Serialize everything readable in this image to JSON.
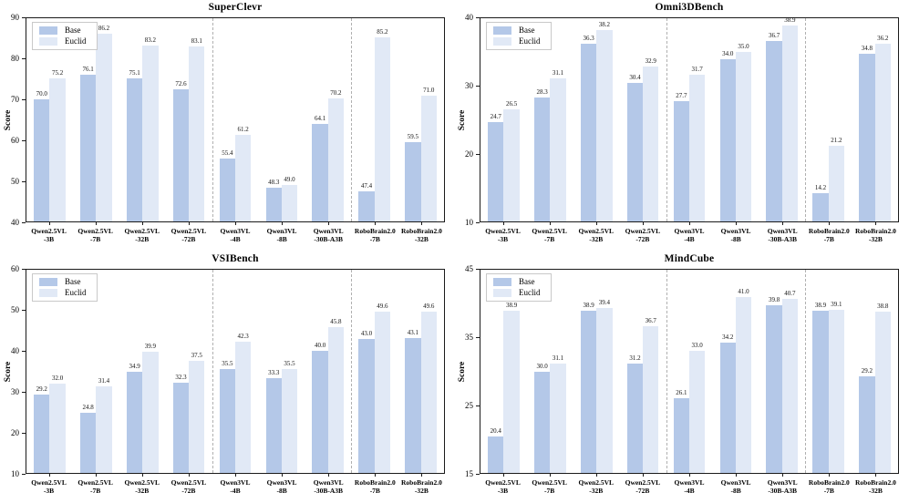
{
  "figure": {
    "legend_labels": [
      "Base",
      "Euclid"
    ],
    "score_axis_label": "Score"
  },
  "colors": {
    "base_bar": "#b4c8e8",
    "euclid_bar": "#e1e9f6",
    "separator": "#b0b0b0",
    "axis": "#1a1a1a",
    "value_label": "#111111",
    "background": "#ffffff"
  },
  "chart_data": [
    {
      "type": "bar",
      "title": "SuperClevr",
      "xlabel": "",
      "ylabel": "Score",
      "ylim": [
        40,
        90
      ],
      "yticks": [
        40,
        50,
        60,
        70,
        80,
        90
      ],
      "grid": false,
      "legend_position": "upper-left",
      "categories": [
        [
          "Qwen2.5VL",
          "-3B"
        ],
        [
          "Qwen2.5VL",
          "-7B"
        ],
        [
          "Qwen2.5VL",
          "-32B"
        ],
        [
          "Qwen2.5VL",
          "-72B"
        ],
        [
          "Qwen3VL",
          "-4B"
        ],
        [
          "Qwen3VL",
          "-8B"
        ],
        [
          "Qwen3VL",
          "-30B-A3B"
        ],
        [
          "RoboBrain2.0",
          "-7B"
        ],
        [
          "RoboBrain2.0",
          "-32B"
        ]
      ],
      "series": [
        {
          "name": "Base",
          "values": [
            70.0,
            76.1,
            75.1,
            72.6,
            55.4,
            48.3,
            64.1,
            47.4,
            59.5
          ]
        },
        {
          "name": "Euclid",
          "values": [
            75.2,
            86.2,
            83.2,
            83.1,
            61.2,
            49.0,
            70.2,
            85.2,
            71.0
          ]
        }
      ],
      "separators_after_index": [
        3,
        6
      ]
    },
    {
      "type": "bar",
      "title": "Omni3DBench",
      "xlabel": "",
      "ylabel": "Score",
      "ylim": [
        10,
        40
      ],
      "yticks": [
        10,
        20,
        30,
        40
      ],
      "grid": false,
      "legend_position": "upper-left",
      "categories": [
        [
          "Qwen2.5VL",
          "-3B"
        ],
        [
          "Qwen2.5VL",
          "-7B"
        ],
        [
          "Qwen2.5VL",
          "-32B"
        ],
        [
          "Qwen2.5VL",
          "-72B"
        ],
        [
          "Qwen3VL",
          "-4B"
        ],
        [
          "Qwen3VL",
          "-8B"
        ],
        [
          "Qwen3VL",
          "-30B-A3B"
        ],
        [
          "RoboBrain2.0",
          "-7B"
        ],
        [
          "RoboBrain2.0",
          "-32B"
        ]
      ],
      "series": [
        {
          "name": "Base",
          "values": [
            24.7,
            28.3,
            36.3,
            30.4,
            27.7,
            34.0,
            36.7,
            14.2,
            34.8
          ]
        },
        {
          "name": "Euclid",
          "values": [
            26.5,
            31.1,
            38.2,
            32.9,
            31.7,
            35.0,
            38.9,
            21.2,
            36.2
          ]
        }
      ],
      "separators_after_index": [
        3,
        6
      ]
    },
    {
      "type": "bar",
      "title": "VSIBench",
      "xlabel": "",
      "ylabel": "Score",
      "ylim": [
        10,
        60
      ],
      "yticks": [
        10,
        20,
        30,
        40,
        50,
        60
      ],
      "grid": false,
      "legend_position": "upper-left",
      "categories": [
        [
          "Qwen2.5VL",
          "-3B"
        ],
        [
          "Qwen2.5VL",
          "-7B"
        ],
        [
          "Qwen2.5VL",
          "-32B"
        ],
        [
          "Qwen2.5VL",
          "-72B"
        ],
        [
          "Qwen3VL",
          "-4B"
        ],
        [
          "Qwen3VL",
          "-8B"
        ],
        [
          "Qwen3VL",
          "-30B-A3B"
        ],
        [
          "RoboBrain2.0",
          "-7B"
        ],
        [
          "RoboBrain2.0",
          "-32B"
        ]
      ],
      "series": [
        {
          "name": "Base",
          "values": [
            29.2,
            24.8,
            34.9,
            32.3,
            35.5,
            33.3,
            40.0,
            43.0,
            43.1
          ]
        },
        {
          "name": "Euclid",
          "values": [
            32.0,
            31.4,
            39.9,
            37.5,
            42.3,
            35.5,
            45.8,
            49.6,
            49.6
          ]
        }
      ],
      "separators_after_index": [
        3,
        6
      ]
    },
    {
      "type": "bar",
      "title": "MindCube",
      "xlabel": "",
      "ylabel": "Score",
      "ylim": [
        15,
        45
      ],
      "yticks": [
        15,
        25,
        35,
        45
      ],
      "grid": false,
      "legend_position": "upper-left",
      "categories": [
        [
          "Qwen2.5VL",
          "-3B"
        ],
        [
          "Qwen2.5VL",
          "-7B"
        ],
        [
          "Qwen2.5VL",
          "-32B"
        ],
        [
          "Qwen2.5VL",
          "-72B"
        ],
        [
          "Qwen3VL",
          "-4B"
        ],
        [
          "Qwen3VL",
          "-8B"
        ],
        [
          "Qwen3VL",
          "-30B-A3B"
        ],
        [
          "RoboBrain2.0",
          "-7B"
        ],
        [
          "RoboBrain2.0",
          "-32B"
        ]
      ],
      "series": [
        {
          "name": "Base",
          "values": [
            20.4,
            30.0,
            38.9,
            31.2,
            26.1,
            34.2,
            39.8,
            38.9,
            29.2
          ]
        },
        {
          "name": "Euclid",
          "values": [
            38.9,
            31.1,
            39.4,
            36.7,
            33.0,
            41.0,
            40.7,
            39.1,
            38.8
          ]
        }
      ],
      "separators_after_index": [
        3,
        6
      ]
    }
  ]
}
